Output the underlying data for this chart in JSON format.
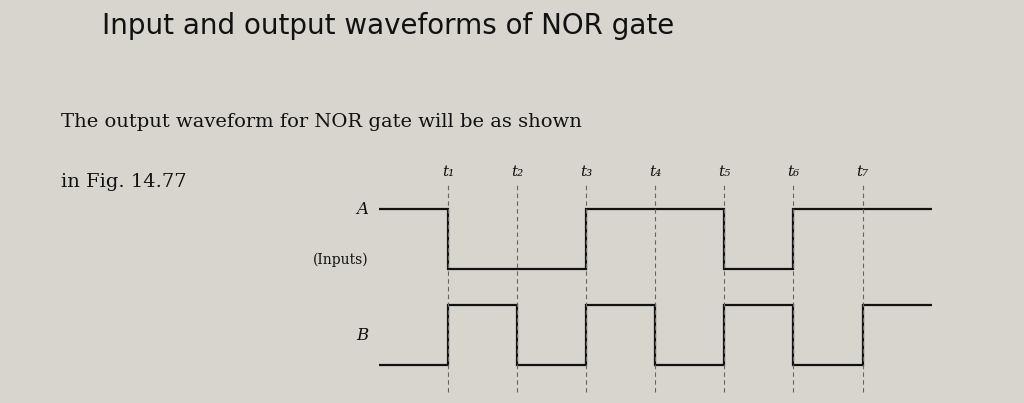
{
  "title": "Input and output waveforms of NOR gate",
  "subtitle_line1": "The output waveform for NOR gate will be as shown",
  "subtitle_line2": "in Fig. 14.77",
  "time_labels": [
    "t₁",
    "t₂",
    "t₃",
    "t₄",
    "t₅",
    "t₆",
    "t₇"
  ],
  "time_positions": [
    1,
    2,
    3,
    4,
    5,
    6,
    7
  ],
  "waveform_A_x": [
    0,
    1,
    1,
    3,
    3,
    5,
    5,
    6,
    6,
    8
  ],
  "waveform_A_y": [
    1,
    1,
    0,
    0,
    1,
    1,
    0,
    0,
    1,
    1
  ],
  "waveform_A_yoffset": 1.6,
  "waveform_B_x": [
    0,
    1,
    1,
    2,
    2,
    3,
    3,
    4,
    4,
    5,
    5,
    6,
    6,
    7,
    7,
    8
  ],
  "waveform_B_y": [
    0,
    0,
    1,
    1,
    0,
    0,
    1,
    1,
    0,
    0,
    1,
    1,
    0,
    0,
    1,
    1
  ],
  "waveform_B_yoffset": 0.0,
  "label_A": "A",
  "label_inputs": "(Inputs)",
  "label_B": "B",
  "fig_bg": "#d8d4ce",
  "waveform_color": "#111111",
  "dashed_color": "#666666",
  "text_color": "#111111"
}
